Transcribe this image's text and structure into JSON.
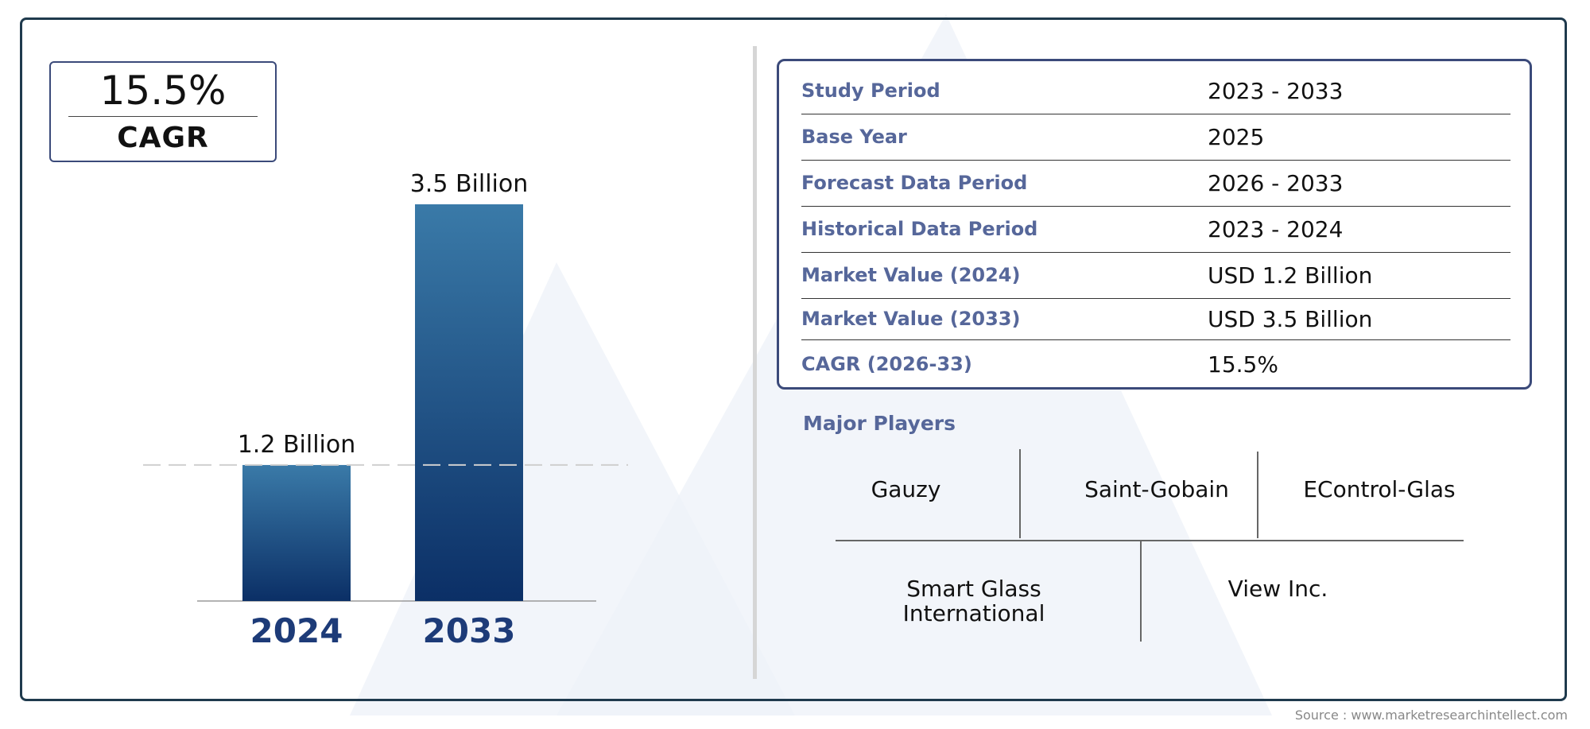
{
  "colors": {
    "frame": "#1f3a4d",
    "accent_label": "#56679a",
    "bar_top": "#3a7aa8",
    "bar_bottom": "#0b2f66",
    "year_label": "#1d3b78",
    "watermark": "#eef2f8"
  },
  "cagr": {
    "value": "15.5%",
    "label": "CAGR"
  },
  "chart_data": {
    "type": "bar",
    "categories": [
      "2024",
      "2033"
    ],
    "values": [
      1.2,
      3.5
    ],
    "value_labels": [
      "1.2 Billion",
      "3.5 Billion"
    ],
    "title": "",
    "xlabel": "",
    "ylabel": "",
    "ylim": [
      0,
      3.5
    ],
    "grid": false,
    "reference_line_at_first_value": true
  },
  "study_info": [
    {
      "label": "Study Period",
      "value": "2023 - 2033"
    },
    {
      "label": "Base Year",
      "value": "2025"
    },
    {
      "label": "Forecast Data Period",
      "value": "2026 - 2033"
    },
    {
      "label": "Historical Data Period",
      "value": "2023 - 2024"
    },
    {
      "label": "Market Value (2024)",
      "value": "USD 1.2 Billion"
    },
    {
      "label": "Market Value (2033)",
      "value": "USD 3.5 Billion"
    },
    {
      "label": "CAGR (2026-33)",
      "value": "15.5%"
    }
  ],
  "major_players": {
    "title": "Major Players",
    "names": [
      "Gauzy",
      "Saint-Gobain",
      "EControl-Glas",
      "Smart Glass\nInternational",
      "View Inc."
    ]
  },
  "source": "Source : www.marketresearchintellect.com"
}
